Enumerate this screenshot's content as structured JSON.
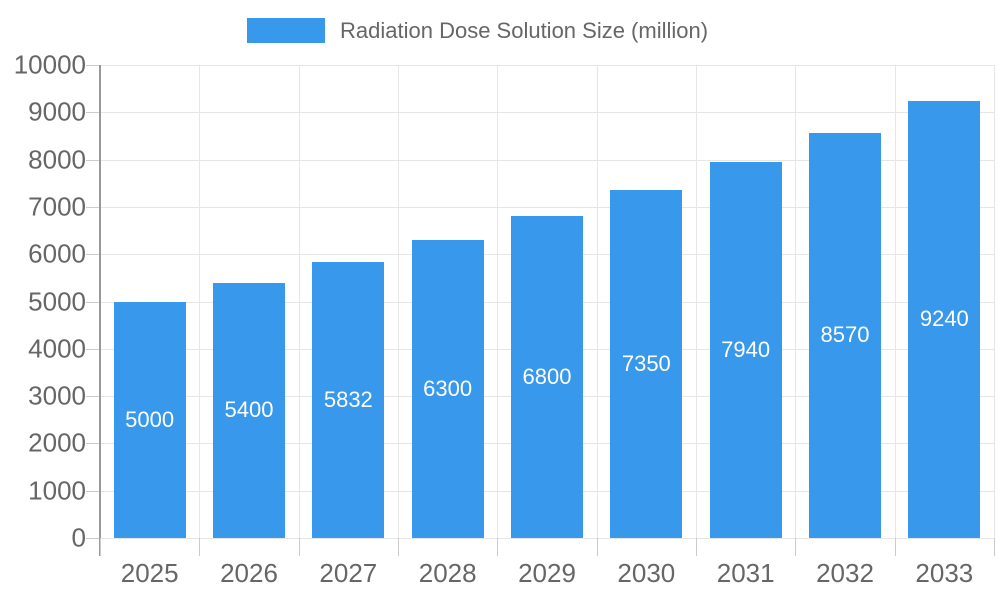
{
  "chart_data": {
    "type": "bar",
    "title": "Radiation Dose Solution Size (million)",
    "series_name": "Radiation Dose Solution Size (million)",
    "legend_label": "Radiation Dose Solution Size (million)",
    "legend_position": "top",
    "categories": [
      "2025",
      "2026",
      "2027",
      "2028",
      "2029",
      "2030",
      "2031",
      "2032",
      "2033"
    ],
    "values": [
      5000,
      5400,
      5832,
      6300,
      6800,
      7350,
      7940,
      8570,
      9240
    ],
    "value_labels": [
      "5000",
      "5400",
      "5832",
      "6300",
      "6800",
      "7350",
      "7940",
      "8570",
      "9240"
    ],
    "xlabel": "",
    "ylabel": "",
    "ylim": [
      0,
      10000
    ],
    "ytick_step": 1000,
    "ytick_labels": [
      "0",
      "1000",
      "2000",
      "3000",
      "4000",
      "5000",
      "6000",
      "7000",
      "8000",
      "9000",
      "10000"
    ],
    "grid": true,
    "colors": {
      "bar": "#3898ec",
      "value_label": "#ffffff",
      "axis_label": "#666666",
      "axis_line": "#999999",
      "gridline": "#e6e6e6",
      "tick": "#cccccc",
      "background": "#ffffff"
    }
  }
}
